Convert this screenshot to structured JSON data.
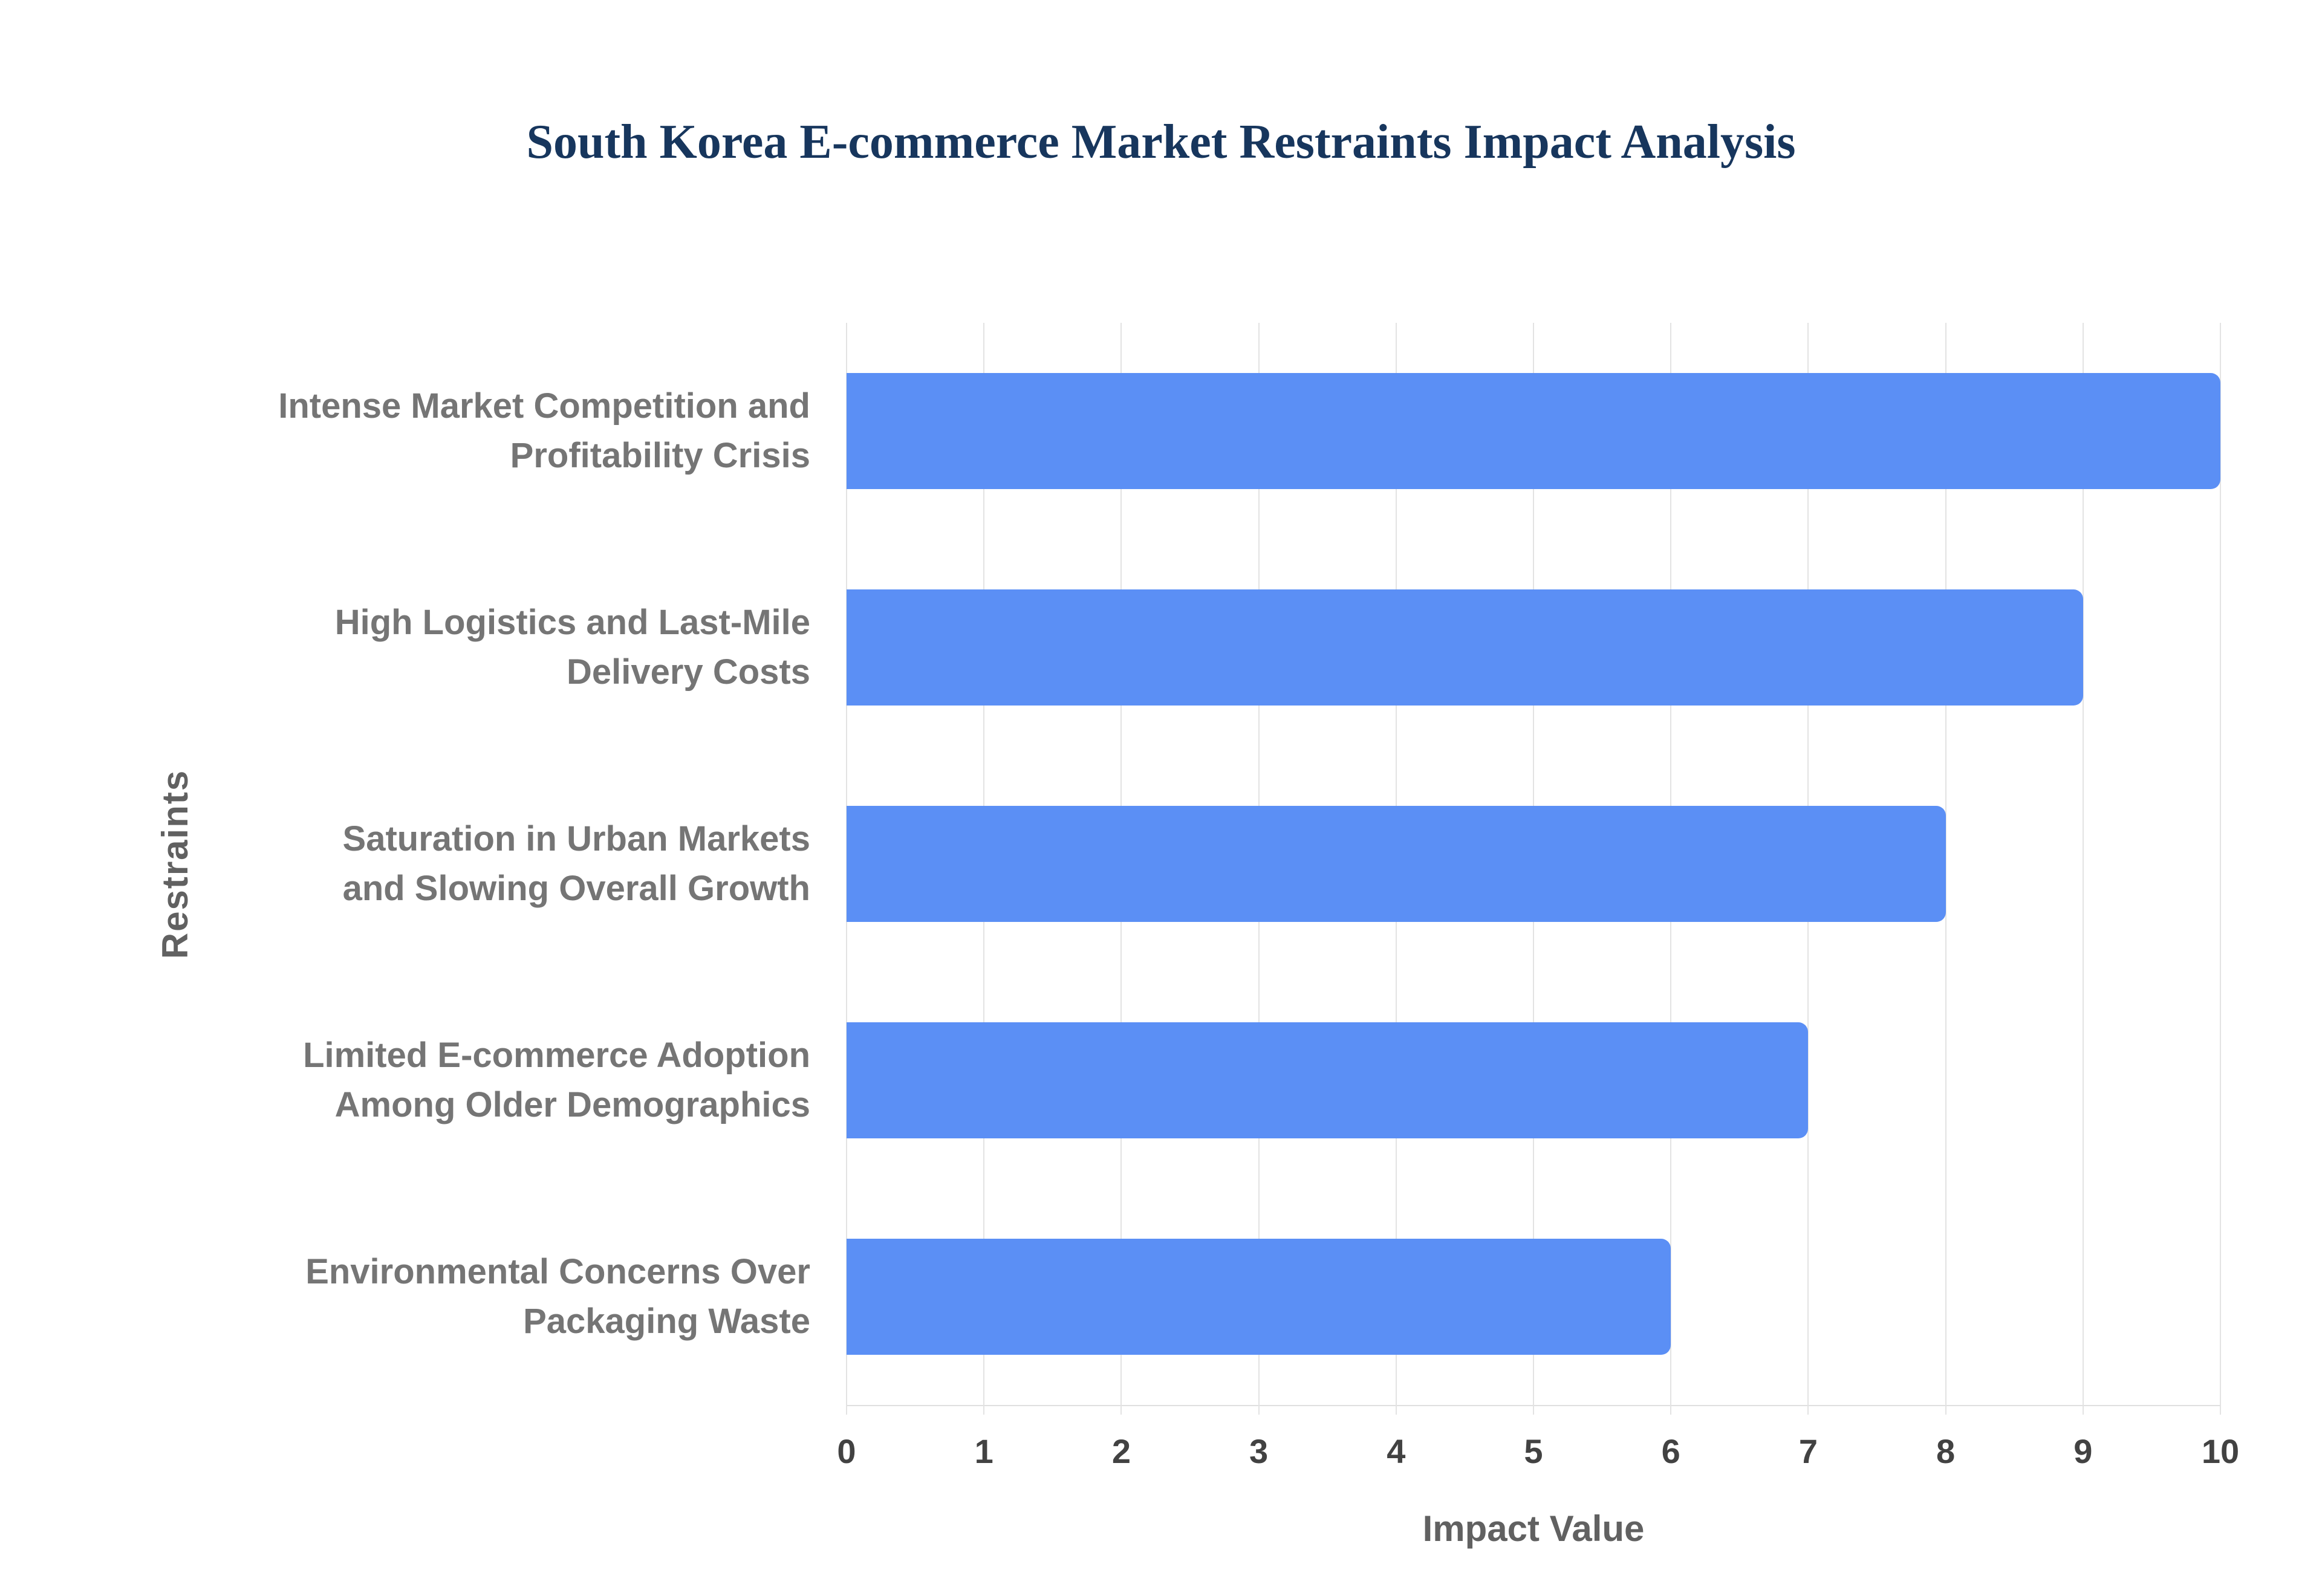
{
  "chart_data": {
    "type": "bar",
    "orientation": "horizontal",
    "title": "South Korea E-commerce Market Restraints Impact Analysis",
    "xlabel": "Impact Value",
    "ylabel": "Restraints",
    "xlim": [
      0,
      10
    ],
    "xticks": [
      "0",
      "1",
      "2",
      "3",
      "4",
      "5",
      "6",
      "7",
      "8",
      "9",
      "10"
    ],
    "grid": true,
    "legend": "none",
    "bar_color": "#5b8ff5",
    "title_color": "#17365d",
    "categories": [
      [
        "Intense Market Competition and",
        "Profitability Crisis"
      ],
      [
        "High Logistics and Last-Mile",
        "Delivery Costs"
      ],
      [
        "Saturation in Urban Markets",
        "and Slowing Overall Growth"
      ],
      [
        "Limited E-commerce Adoption",
        "Among Older Demographics"
      ],
      [
        "Environmental Concerns Over",
        "Packaging Waste"
      ]
    ],
    "values": [
      10,
      9,
      8,
      7,
      6
    ]
  }
}
